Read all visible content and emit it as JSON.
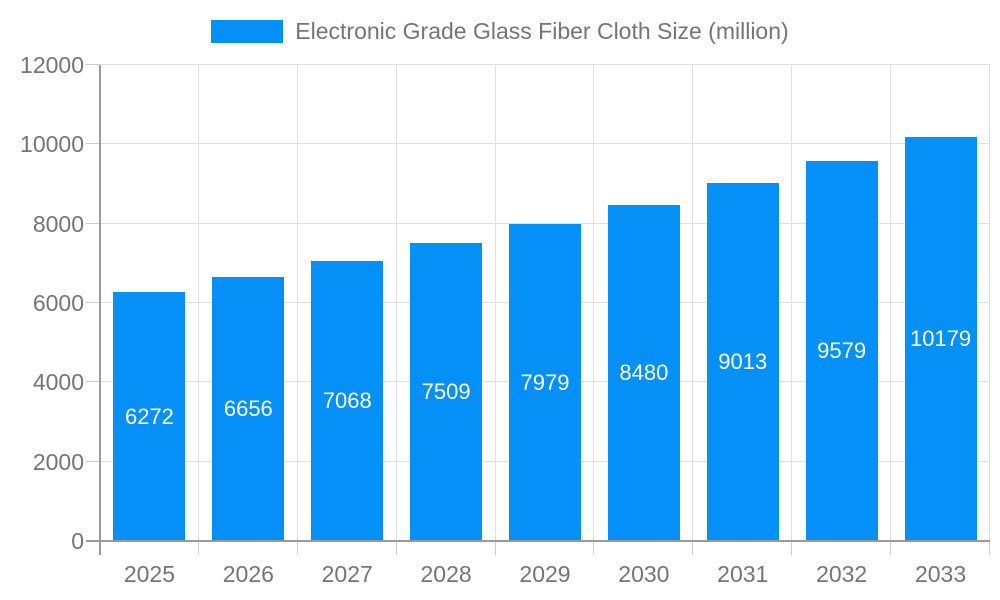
{
  "chart_data": {
    "type": "bar",
    "title": "",
    "legend": "Electronic Grade Glass Fiber Cloth Size (million)",
    "legend_position": "top-center",
    "categories": [
      "2025",
      "2026",
      "2027",
      "2028",
      "2029",
      "2030",
      "2031",
      "2032",
      "2033"
    ],
    "values": [
      6272,
      6656,
      7068,
      7509,
      7979,
      8480,
      9013,
      9579,
      10179
    ],
    "xlabel": "",
    "ylabel": "",
    "ylim": [
      0,
      12000
    ],
    "ytick_step": 2000,
    "yticks": [
      0,
      2000,
      4000,
      6000,
      8000,
      10000,
      12000
    ],
    "grid": "horizontal-and-vertical",
    "value_labels": "inside-center-white",
    "colors": {
      "bar": "#0590f8",
      "bar_label": "#ffffff",
      "axis_text": "#757575",
      "axis_line": "#9a9a9a",
      "tick": "#cccccc",
      "gridline": "#e0e0e0",
      "background": "#ffffff"
    }
  }
}
